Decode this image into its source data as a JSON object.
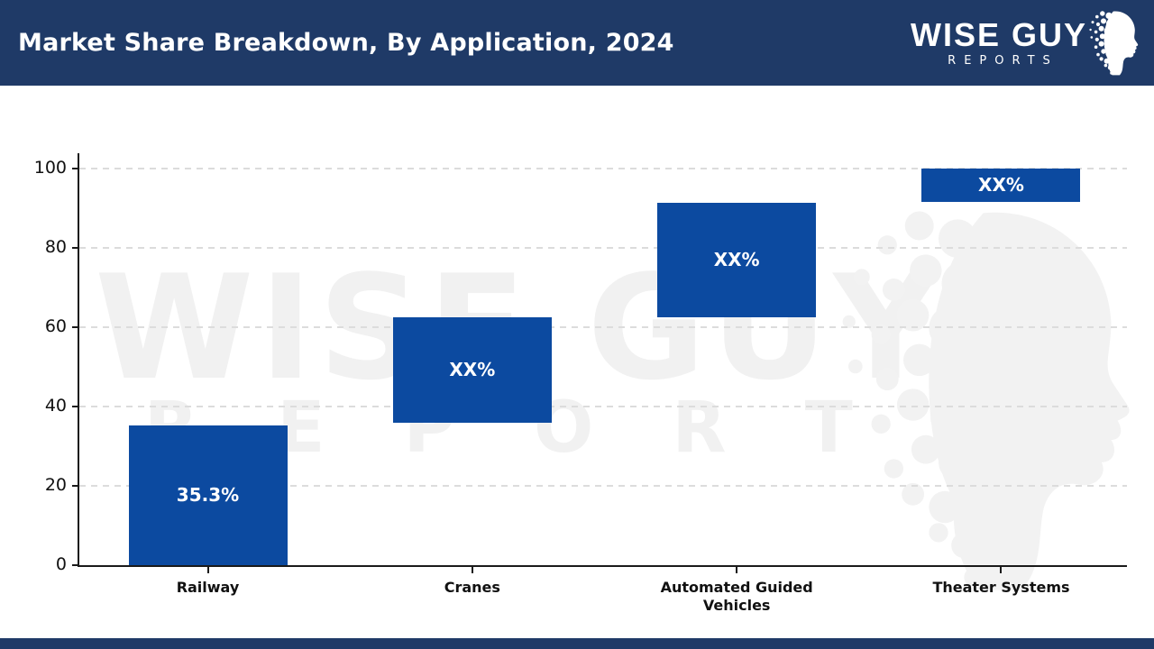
{
  "header": {
    "title": "Market Share Breakdown, By Application, 2024",
    "bg_color": "#1f3a67",
    "logo": {
      "line1": "WISE GUY",
      "line2": "REPORTS"
    }
  },
  "watermark": {
    "line1": "WISE GUY",
    "line2": "R E P O R T S"
  },
  "footer": {
    "bg_color": "#1f3a67"
  },
  "chart_data": {
    "type": "bar",
    "subtype": "waterfall",
    "title": "Market Share Breakdown, By Application, 2024",
    "categories": [
      "Railway",
      "Cranes",
      "Automated Guided Vehicles",
      "Theater Systems"
    ],
    "segments": [
      {
        "category": "Railway",
        "start": 0,
        "end": 35.3,
        "label": "35.3%"
      },
      {
        "category": "Cranes",
        "start": 36,
        "end": 62.5,
        "label": "XX%"
      },
      {
        "category": "Automated Guided Vehicles",
        "start": 62.5,
        "end": 91.4,
        "label": "XX%"
      },
      {
        "category": "Theater Systems",
        "start": 91.6,
        "end": 100,
        "label": "XX%"
      }
    ],
    "y_ticks": [
      0,
      20,
      40,
      60,
      80,
      100
    ],
    "ylim": [
      0,
      104
    ],
    "xlabel": "",
    "ylabel": "",
    "grid": "horizontal-dashed",
    "legend": "none",
    "bar_color": "#0c4aa0",
    "bar_label_color": "#ffffff"
  }
}
